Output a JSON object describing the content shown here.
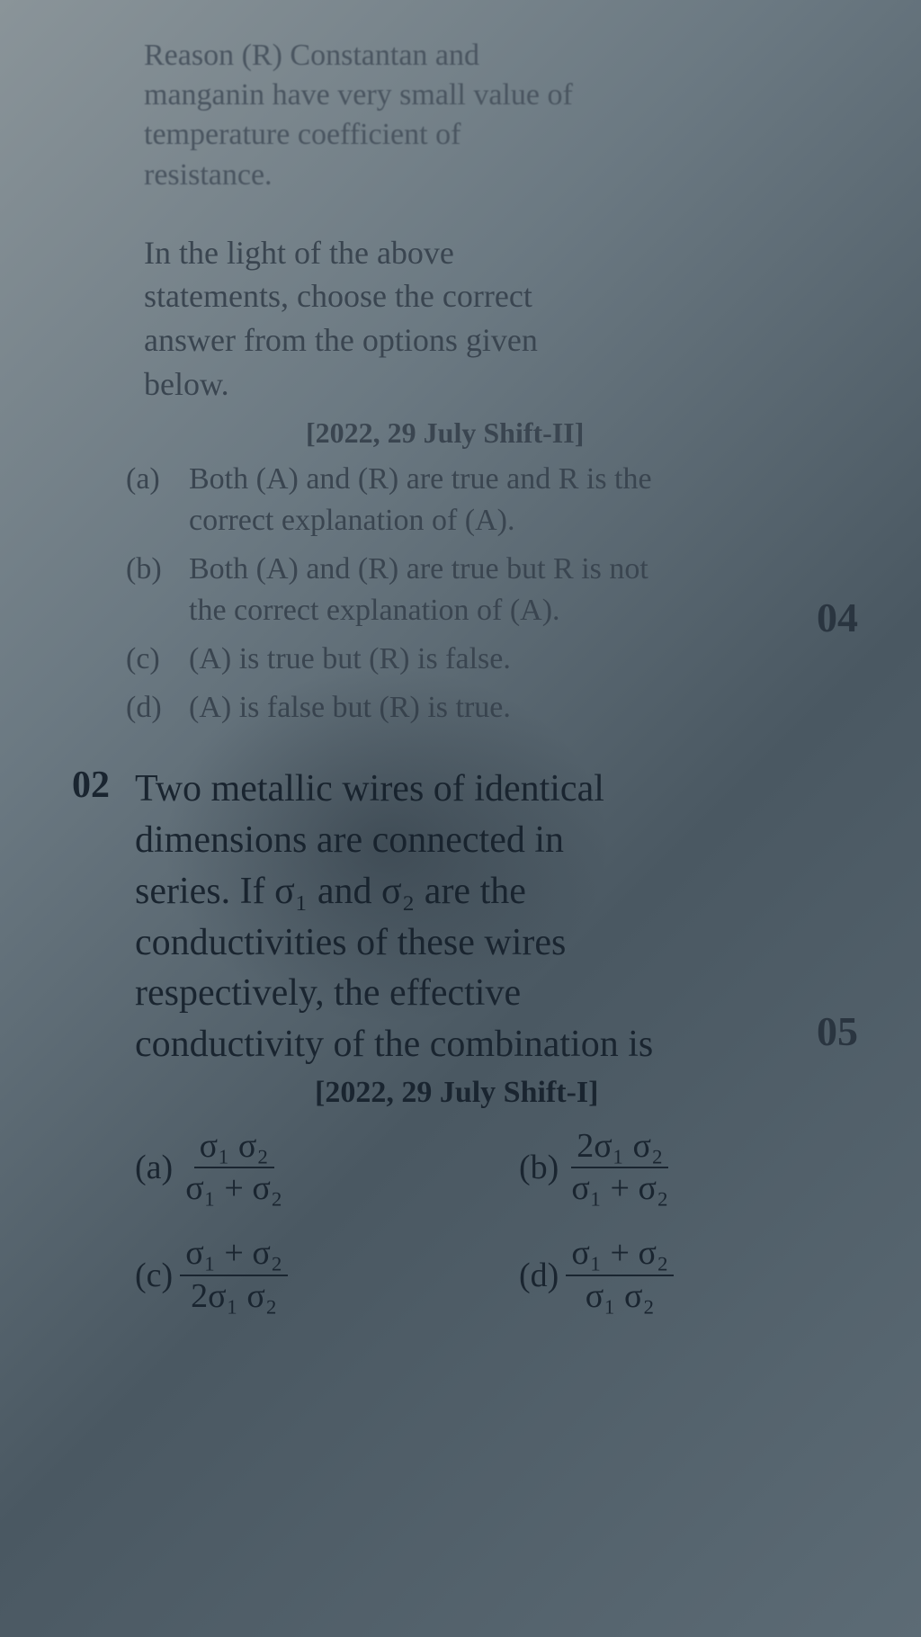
{
  "q1": {
    "reason_label": "Reason (R)",
    "reason_text_l1": "Constantan and",
    "reason_text_l2": "manganin have very small value of",
    "reason_text_l3": "temperature coefficient of",
    "reason_text_l4": "resistance.",
    "stem_l1": "In the light of the above",
    "stem_l2": "statements, choose the correct",
    "stem_l3": "answer from the options given",
    "stem_l4": "below.",
    "tag": "[2022, 29 July Shift-II]",
    "opt_a_label": "(a)",
    "opt_a_l1": "Both (A) and (R) are true and R is the",
    "opt_a_l2": "correct explanation of (A).",
    "opt_b_label": "(b)",
    "opt_b_l1": "Both (A) and (R) are true but R is not",
    "opt_b_l2": "the correct explanation of (A).",
    "opt_c_label": "(c)",
    "opt_c_text": "(A) is true but (R) is false.",
    "opt_d_label": "(d)",
    "opt_d_text": "(A) is false but (R) is true."
  },
  "side": {
    "n04": "04",
    "n05": "05"
  },
  "q2": {
    "num": "02",
    "stem_l1": "Two metallic wires of identical",
    "stem_l2": "dimensions are connected in",
    "stem_l3": "series. If σ₁ and σ₂ are the",
    "stem_l4": "conductivities of these wires",
    "stem_l5": "respectively, the effective",
    "stem_l6": "conductivity of the combination is",
    "tag": "[2022, 29 July Shift-I]",
    "opt_a_label": "(a)",
    "opt_a_num": "σ₁ σ₂",
    "opt_a_den": "σ₁ + σ₂",
    "opt_b_label": "(b)",
    "opt_b_num": "2σ₁ σ₂",
    "opt_b_den": "σ₁ + σ₂",
    "opt_c_label": "(c)",
    "opt_c_num": "σ₁ + σ₂",
    "opt_c_den": "2σ₁ σ₂",
    "opt_d_label": "(d)",
    "opt_d_num": "σ₁ + σ₂",
    "opt_d_den": "σ₁ σ₂"
  }
}
